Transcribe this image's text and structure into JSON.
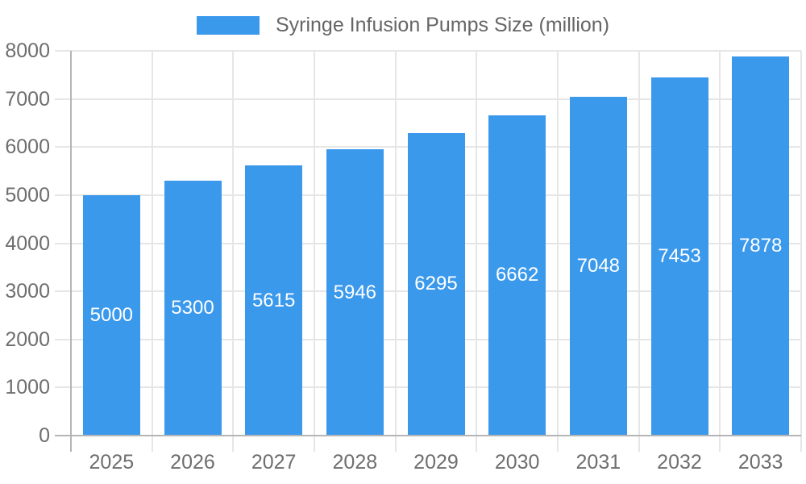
{
  "legend": {
    "label": "Syringe Infusion Pumps Size (million)"
  },
  "chart_data": {
    "type": "bar",
    "title": "",
    "categories": [
      "2025",
      "2026",
      "2027",
      "2028",
      "2029",
      "2030",
      "2031",
      "2032",
      "2033"
    ],
    "series": [
      {
        "name": "Syringe Infusion Pumps Size (million)",
        "values": [
          5000,
          5300,
          5615,
          5946,
          6295,
          6662,
          7048,
          7453,
          7878
        ]
      }
    ],
    "bar_value_labels": [
      "5000",
      "5300",
      "5615",
      "5946",
      "6295",
      "6662",
      "7048",
      "7453",
      "7878"
    ],
    "xlabel": "",
    "ylabel": "",
    "ylim": [
      0,
      8000
    ],
    "yticks": [
      0,
      1000,
      2000,
      3000,
      4000,
      5000,
      6000,
      7000,
      8000
    ],
    "grid": true,
    "legend_position": "top",
    "colors": {
      "bar": "#3b99ec",
      "bar_label_text": "#ffffff",
      "axis_text": "#6e6e6e",
      "legend_text": "#666666",
      "gridline": "#e6e6e6",
      "axis_line": "#b5b5b5",
      "background": "#ffffff"
    }
  }
}
